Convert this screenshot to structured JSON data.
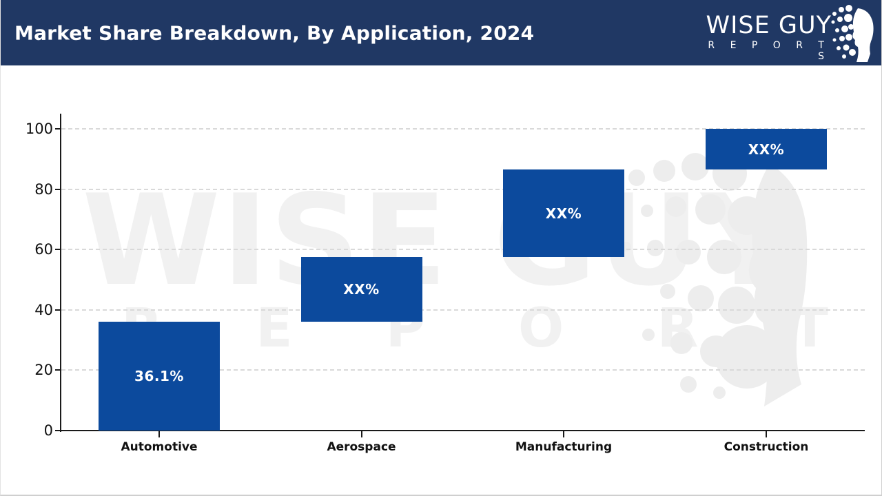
{
  "header": {
    "title": "Market Share Breakdown, By Application, 2024",
    "bg_color": "#203864",
    "logo": {
      "line1": "WISE GUY",
      "line2": "R E P O R T S"
    }
  },
  "watermark": {
    "line1": "WISE GUY",
    "line2": "R E P O R T S"
  },
  "chart_data": {
    "type": "bar",
    "subtype": "waterfall-floating-segments",
    "title": "Market Share Breakdown, By Application, 2024",
    "categories": [
      "Automotive",
      "Aerospace",
      "Manufacturing",
      "Construction"
    ],
    "segments": [
      {
        "category": "Automotive",
        "start": 0,
        "end": 36.1,
        "label": "36.1%"
      },
      {
        "category": "Aerospace",
        "start": 36.1,
        "end": 57.5,
        "label": "XX%"
      },
      {
        "category": "Manufacturing",
        "start": 57.5,
        "end": 86.5,
        "label": "XX%"
      },
      {
        "category": "Construction",
        "start": 86.5,
        "end": 100,
        "label": "XX%"
      }
    ],
    "xlabel": "",
    "ylabel": "",
    "y_ticks": [
      0,
      20,
      40,
      60,
      80,
      100
    ],
    "ylim": [
      0,
      105
    ],
    "grid": "horizontal-dashed",
    "legend": "none",
    "bar_color": "#0c4a9d",
    "bar_label_color": "#ffffff",
    "axis_color": "#1a1a1a",
    "gridline_color": "#d9d9d9"
  }
}
